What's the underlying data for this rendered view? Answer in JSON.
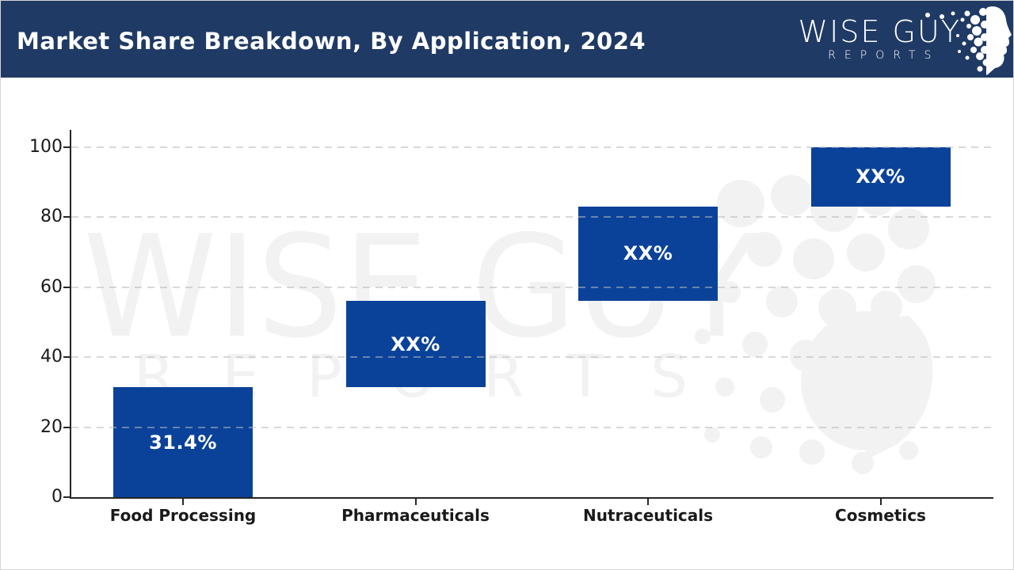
{
  "page": {
    "bg": "#ffffff",
    "border_color": "#d6d6d6"
  },
  "header": {
    "bg_color": "#1f3a64",
    "title": "Market Share Breakdown, By Application, 2024",
    "logo_line1": "WISE GUY",
    "logo_line2": "REPORTS"
  },
  "watermark": {
    "line1": "WISE GUY",
    "line2": "REPORTS"
  },
  "chart_data": {
    "type": "bar",
    "subtype": "floating-waterfall-bars",
    "title": "Market Share Breakdown, By Application, 2024",
    "categories": [
      "Food Processing",
      "Pharmaceuticals",
      "Nutraceuticals",
      "Cosmetics"
    ],
    "series": [
      {
        "name": "Market share (%)",
        "segments": [
          {
            "category": "Food Processing",
            "start": 0,
            "end": 31.4,
            "label": "31.4%"
          },
          {
            "category": "Pharmaceuticals",
            "start": 31.4,
            "end": 56,
            "label": "XX%"
          },
          {
            "category": "Nutraceuticals",
            "start": 56,
            "end": 83,
            "label": "XX%"
          },
          {
            "category": "Cosmetics",
            "start": 83,
            "end": 100,
            "label": "XX%"
          }
        ]
      }
    ],
    "xlabel": "",
    "ylabel": "",
    "yticks": [
      0,
      20,
      40,
      60,
      80,
      100
    ],
    "ylim": [
      0,
      105
    ],
    "grid": "horizontal-dashed",
    "legend": "none",
    "bar_color": "#0a429a",
    "bar_label_color": "#ffffff",
    "axis_color": "#262626"
  }
}
